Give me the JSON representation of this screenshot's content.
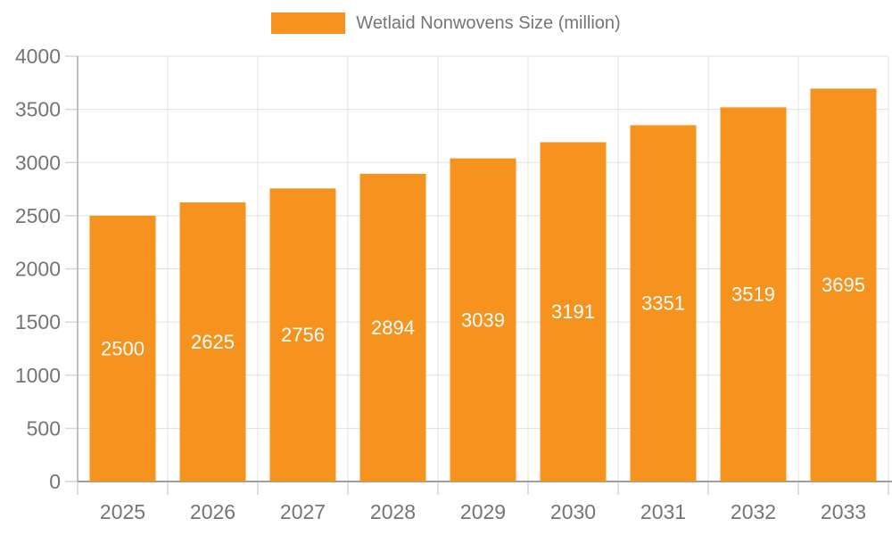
{
  "legend": {
    "label": "Wetlaid Nonwovens Size (million)",
    "swatch_icon": "series-color-swatch"
  },
  "colors": {
    "bar": "#F6921E",
    "axis_text": "#757575",
    "legend_text": "#757575",
    "bar_label_text": "#FFFFFF",
    "grid_line": "#E0E0E0",
    "tick_line": "#D6D6D6",
    "y_axis_line": "#ABABAB",
    "x_axis_line": "#9E9E9E",
    "background": "#FFFFFF"
  },
  "chart_data": {
    "type": "bar",
    "title": "Wetlaid Nonwovens Size (million)",
    "categories": [
      "2025",
      "2026",
      "2027",
      "2028",
      "2029",
      "2030",
      "2031",
      "2032",
      "2033"
    ],
    "series": [
      {
        "name": "Wetlaid Nonwovens Size (million)",
        "values": [
          2500,
          2625,
          2756,
          2894,
          3039,
          3191,
          3351,
          3519,
          3695
        ]
      }
    ],
    "value_labels": [
      2500,
      2625,
      2756,
      2894,
      3039,
      3191,
      3351,
      3519,
      3695
    ],
    "value_label_position": "inside-center",
    "xlabel": "",
    "ylabel": "",
    "ylim": [
      0,
      4000
    ],
    "ytick_step": 500,
    "ytick_labels": [
      "0",
      "500",
      "1000",
      "1500",
      "2000",
      "2500",
      "3000",
      "3500",
      "4000"
    ],
    "grid": true,
    "legend_position": "top-center"
  }
}
